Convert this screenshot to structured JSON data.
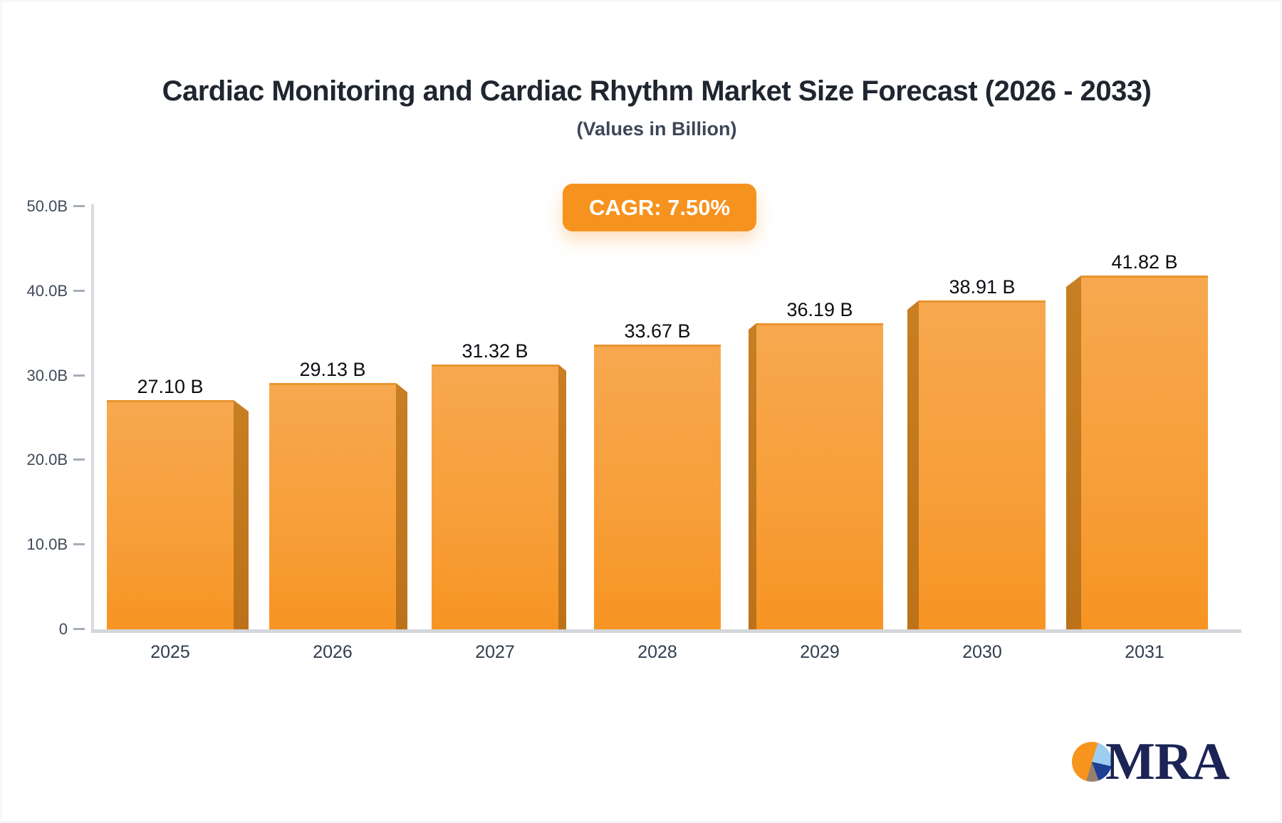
{
  "header": {
    "title": "Cardiac Monitoring and Cardiac Rhythm Market Size Forecast (2026 - 2033)",
    "subtitle": "(Values in Billion)",
    "cagr_badge": "CAGR: 7.50%"
  },
  "chart_data": {
    "type": "bar",
    "title": "Cardiac Monitoring and Cardiac Rhythm Market Size Forecast (2026 - 2033)",
    "subtitle": "(Values in Billion)",
    "cagr": "7.50%",
    "categories": [
      "2025",
      "2026",
      "2027",
      "2028",
      "2029",
      "2030",
      "2031"
    ],
    "values": [
      27.1,
      29.13,
      31.32,
      33.67,
      36.19,
      38.91,
      41.82
    ],
    "value_labels": [
      "27.10 B",
      "29.13 B",
      "31.32 B",
      "33.67 B",
      "36.19 B",
      "38.91 B",
      "41.82 B"
    ],
    "y_tick_labels": [
      "50.0B",
      "40.0B",
      "30.0B",
      "20.0B",
      "10.0B",
      "0"
    ],
    "y_tick_values": [
      50,
      40,
      30,
      20,
      10,
      0
    ],
    "ylim": [
      0,
      50
    ],
    "grid": false,
    "legend": "none",
    "unit": "Billion",
    "colors": {
      "bar_top": "#f7a84f",
      "bar_bottom": "#f79423",
      "bar_side": "#c1771e",
      "badge": "#f6921e",
      "axis": "#d8dbe0"
    }
  },
  "logo": {
    "text": "MRA",
    "pie_colors": [
      "#f7941e",
      "#9dcef0",
      "#1e3f96",
      "#97806f"
    ]
  }
}
